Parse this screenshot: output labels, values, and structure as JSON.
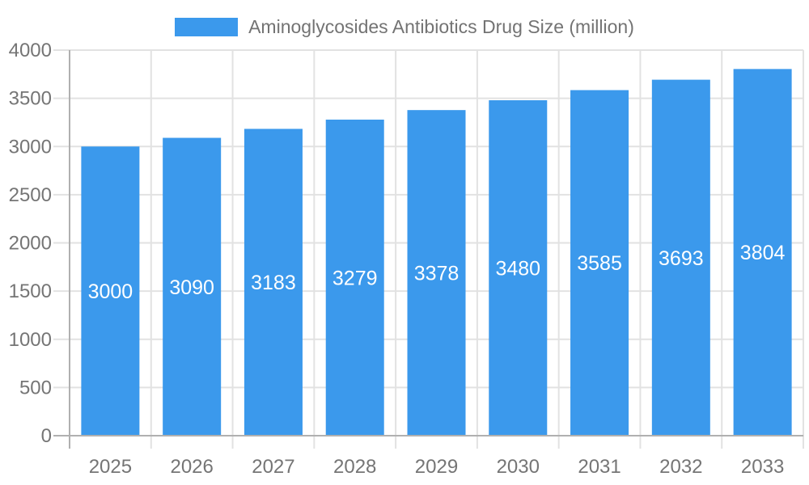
{
  "legend": {
    "label": "Aminoglycosides Antibiotics Drug Size (million)"
  },
  "chart_data": {
    "type": "bar",
    "title": "Aminoglycosides Antibiotics Drug Size (million)",
    "categories": [
      "2025",
      "2026",
      "2027",
      "2028",
      "2029",
      "2030",
      "2031",
      "2032",
      "2033"
    ],
    "values": [
      3000,
      3090,
      3183,
      3279,
      3378,
      3480,
      3585,
      3693,
      3804
    ],
    "value_labels": [
      "3000",
      "3090",
      "3183",
      "3279",
      "3378",
      "3480",
      "3585",
      "3693",
      "3804"
    ],
    "series": [
      {
        "name": "Aminoglycosides Antibiotics Drug Size (million)",
        "values": [
          3000,
          3090,
          3183,
          3279,
          3378,
          3480,
          3585,
          3693,
          3804
        ]
      }
    ],
    "xlabel": "",
    "ylabel": "",
    "ylim": [
      0,
      4000
    ],
    "yticks": [
      0,
      500,
      1000,
      1500,
      2000,
      2500,
      3000,
      3500,
      4000
    ],
    "grid": true,
    "legend_position": "top",
    "colors": {
      "bar": "#3b99ec",
      "bar_label": "#ffffff",
      "axis_line": "#b0b0b0",
      "gridline": "#e2e2e2",
      "axis_text": "#757575",
      "legend_text": "#737373",
      "background": "#ffffff"
    }
  }
}
